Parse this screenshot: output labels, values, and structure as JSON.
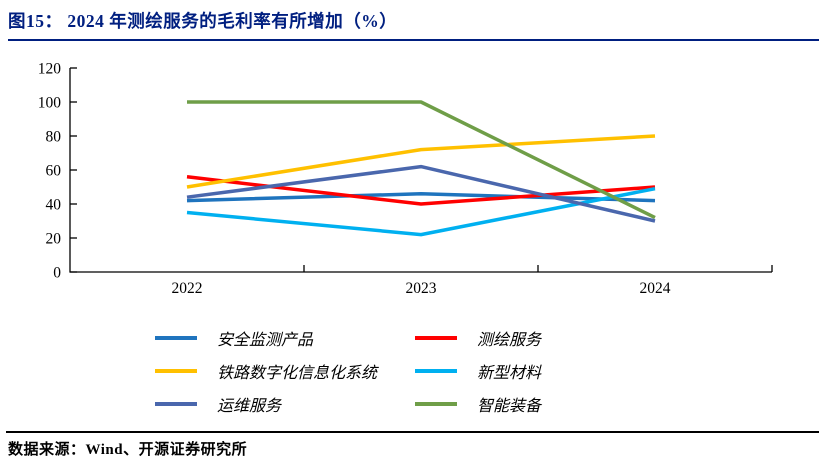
{
  "header": {
    "title": "图15： 2024 年测绘服务的毛利率有所增加（%）"
  },
  "chart_data": {
    "type": "line",
    "title": "2024 年测绘服务的毛利率有所增加（%）",
    "categories": [
      "2022",
      "2023",
      "2024"
    ],
    "series": [
      {
        "name": "安全监测产品",
        "color": "#1F74BE",
        "values": [
          42,
          46,
          42
        ]
      },
      {
        "name": "测绘服务",
        "color": "#FF0000",
        "values": [
          56,
          40,
          50
        ]
      },
      {
        "name": "铁路数字化信息化系统",
        "color": "#FFC000",
        "values": [
          50,
          72,
          80
        ]
      },
      {
        "name": "新型材料",
        "color": "#00B0F0",
        "values": [
          35,
          22,
          49
        ]
      },
      {
        "name": "运维服务",
        "color": "#4A67AD",
        "values": [
          44,
          62,
          30
        ]
      },
      {
        "name": "智能装备",
        "color": "#6F9E48",
        "values": [
          100,
          100,
          32
        ]
      }
    ],
    "ylim": [
      0,
      120
    ],
    "yticks": [
      0,
      20,
      40,
      60,
      80,
      100,
      120
    ],
    "xlabel": "",
    "ylabel": "",
    "grid": false,
    "legend_position": "bottom",
    "legend_columns": 2
  },
  "source": {
    "text": "数据来源：Wind、开源证券研究所"
  },
  "colors": {
    "title_navy": "#001F80",
    "axis_black": "#000000"
  }
}
